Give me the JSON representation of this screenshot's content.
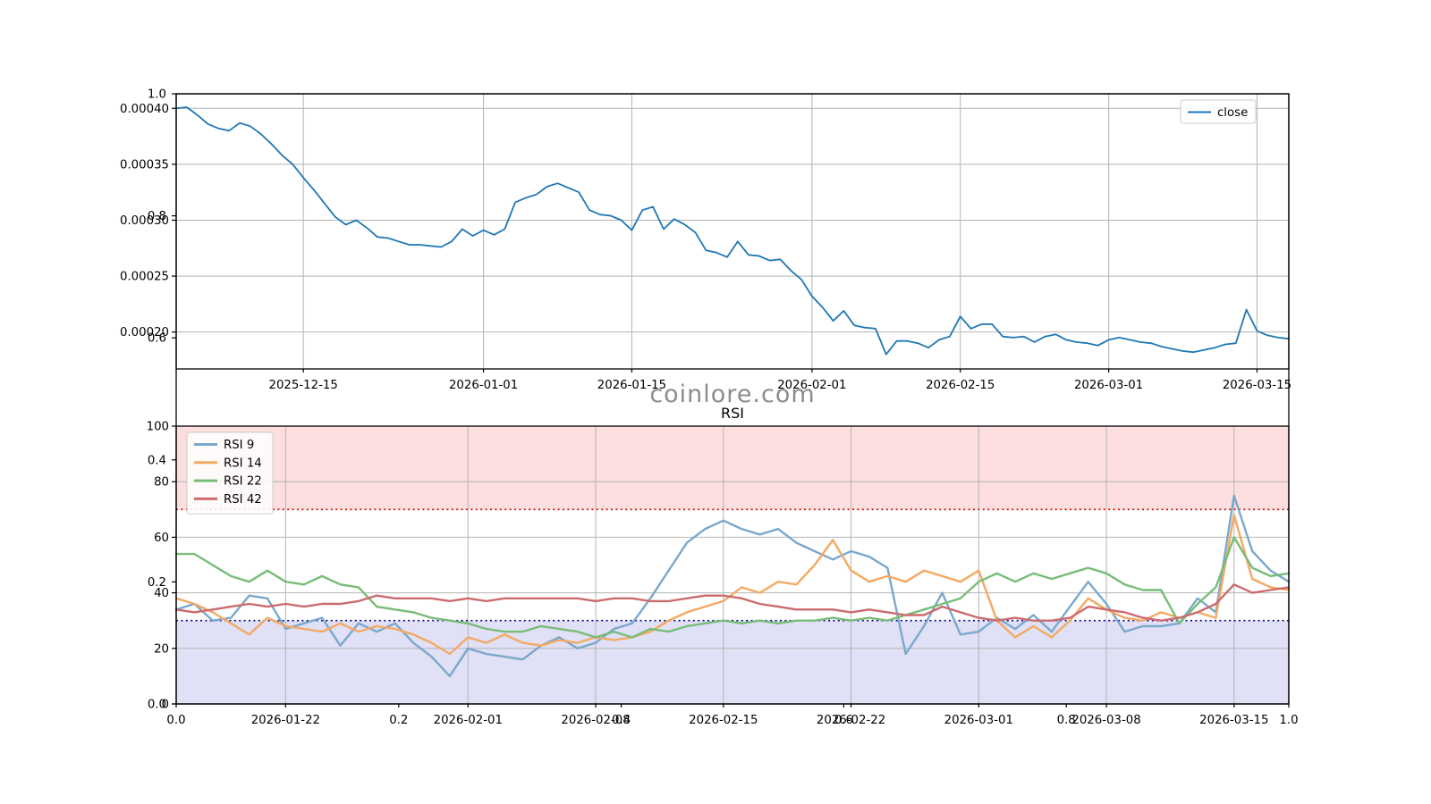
{
  "watermark": "coinlore.com",
  "figure_overlay_axis": {
    "y_labels": [
      "1.0",
      "0.8",
      "0.6",
      "0.4",
      "0.2",
      "0.0"
    ],
    "x_labels": [
      "0.0",
      "0.2",
      "0.4",
      "0.6",
      "0.8",
      "1.0"
    ]
  },
  "chart_data": [
    {
      "type": "line",
      "name": "price",
      "title": "",
      "xlabel": "",
      "ylabel": "",
      "x_start_date": "2025-12-03",
      "x_frequency": "daily",
      "x_tick_labels": [
        "2025-12-15",
        "2026-01-01",
        "2026-01-15",
        "2026-02-01",
        "2026-02-15",
        "2026-03-01",
        "2026-03-15"
      ],
      "x_tick_days": [
        12,
        29,
        43,
        60,
        74,
        88,
        102
      ],
      "y_tick_labels": [
        "0.00020",
        "0.00025",
        "0.00030",
        "0.00035",
        "0.00040"
      ],
      "y_tick_values": [
        0.0002,
        0.00025,
        0.0003,
        0.00035,
        0.0004
      ],
      "ylim": [
        0.000167,
        0.000413
      ],
      "grid": true,
      "legend_position": "top-right",
      "series": [
        {
          "name": "close",
          "color": "#1f77b4",
          "width": 1.8,
          "values": [
            0.0004,
            0.000401,
            0.000394,
            0.000386,
            0.000382,
            0.00038,
            0.000387,
            0.000384,
            0.000377,
            0.000368,
            0.000358,
            0.00035,
            0.000338,
            0.000327,
            0.000315,
            0.000303,
            0.000296,
            0.0003,
            0.000293,
            0.000285,
            0.000284,
            0.000281,
            0.000278,
            0.000278,
            0.000277,
            0.000276,
            0.000281,
            0.000292,
            0.000286,
            0.000291,
            0.000287,
            0.000292,
            0.000316,
            0.00032,
            0.000323,
            0.00033,
            0.000333,
            0.000329,
            0.000325,
            0.000309,
            0.000305,
            0.000304,
            0.0003,
            0.000291,
            0.000309,
            0.000312,
            0.000292,
            0.000301,
            0.000296,
            0.000289,
            0.000273,
            0.000271,
            0.000267,
            0.000281,
            0.000269,
            0.000268,
            0.000264,
            0.000265,
            0.000255,
            0.000247,
            0.000232,
            0.000222,
            0.00021,
            0.000219,
            0.000206,
            0.000204,
            0.000203,
            0.00018,
            0.000192,
            0.000192,
            0.00019,
            0.000186,
            0.000193,
            0.000196,
            0.000214,
            0.000203,
            0.000207,
            0.000207,
            0.000196,
            0.000195,
            0.000196,
            0.000191,
            0.000196,
            0.000198,
            0.000193,
            0.000191,
            0.00019,
            0.000188,
            0.000193,
            0.000195,
            0.000193,
            0.000191,
            0.00019,
            0.000187,
            0.000185,
            0.000183,
            0.000182,
            0.000184,
            0.000186,
            0.000189,
            0.00019,
            0.00022,
            0.000201,
            0.000197,
            0.000195,
            0.000194
          ]
        }
      ]
    },
    {
      "type": "line",
      "name": "rsi",
      "title": "RSI",
      "xlabel": "",
      "ylabel": "",
      "x_start_date": "2026-01-16",
      "x_frequency": "daily",
      "x_tick_labels": [
        "2026-01-22",
        "2026-02-01",
        "2026-02-08",
        "2026-02-15",
        "2026-02-22",
        "2026-03-01",
        "2026-03-08",
        "2026-03-15"
      ],
      "x_tick_days": [
        6,
        16,
        23,
        30,
        37,
        44,
        51,
        58
      ],
      "y_tick_labels": [
        "0",
        "20",
        "40",
        "60",
        "80",
        "100"
      ],
      "y_tick_values": [
        0,
        20,
        40,
        60,
        80,
        100
      ],
      "ylim": [
        0,
        100
      ],
      "grid": true,
      "legend_position": "top-left",
      "bands": [
        {
          "name": "overbought-band",
          "from": 70,
          "to": 100,
          "color": "#fcdede"
        },
        {
          "name": "oversold-band",
          "from": 0,
          "to": 30,
          "color": "#e0e0f6"
        }
      ],
      "ref_lines": [
        {
          "name": "overbought-line",
          "value": 70,
          "color": "#cc0000"
        },
        {
          "name": "oversold-line",
          "value": 30,
          "color": "#00008b"
        }
      ],
      "series": [
        {
          "name": "RSI 9",
          "color": "#7aa8cc",
          "width": 2.4,
          "values": [
            34,
            36,
            30,
            31,
            39,
            38,
            27,
            29,
            31,
            21,
            29,
            26,
            29,
            22,
            17,
            10,
            20,
            18,
            17,
            16,
            21,
            24,
            20,
            22,
            27,
            29,
            38,
            48,
            58,
            63,
            66,
            63,
            61,
            63,
            58,
            55,
            52,
            55,
            53,
            49,
            18,
            28,
            40,
            25,
            26,
            31,
            27,
            32,
            26,
            35,
            44,
            36,
            26,
            28,
            28,
            29,
            38,
            33,
            75,
            55,
            48,
            44
          ]
        },
        {
          "name": "RSI 14",
          "color": "#f4a962",
          "width": 2.4,
          "values": [
            38,
            36,
            33,
            29,
            25,
            31,
            28,
            27,
            26,
            29,
            26,
            28,
            27,
            25,
            22,
            18,
            24,
            22,
            25,
            22,
            21,
            23,
            22,
            24,
            23,
            24,
            26,
            30,
            33,
            35,
            37,
            42,
            40,
            44,
            43,
            50,
            59,
            48,
            44,
            46,
            44,
            48,
            46,
            44,
            48,
            30,
            24,
            28,
            24,
            30,
            38,
            34,
            31,
            30,
            33,
            31,
            33,
            31,
            68,
            45,
            42,
            41
          ]
        },
        {
          "name": "RSI 22",
          "color": "#77bd77",
          "width": 2.4,
          "values": [
            54,
            54,
            50,
            46,
            44,
            48,
            44,
            43,
            46,
            43,
            42,
            35,
            34,
            33,
            31,
            30,
            29,
            27,
            26,
            26,
            28,
            27,
            26,
            24,
            26,
            24,
            27,
            26,
            28,
            29,
            30,
            29,
            30,
            29,
            30,
            30,
            31,
            30,
            31,
            30,
            32,
            34,
            36,
            38,
            44,
            47,
            44,
            47,
            45,
            47,
            49,
            47,
            43,
            41,
            41,
            29,
            36,
            42,
            60,
            49,
            46,
            47
          ]
        },
        {
          "name": "RSI 42",
          "color": "#cc6b6e",
          "width": 2.4,
          "values": [
            34,
            33,
            34,
            35,
            36,
            35,
            36,
            35,
            36,
            36,
            37,
            39,
            38,
            38,
            38,
            37,
            38,
            37,
            38,
            38,
            38,
            38,
            38,
            37,
            38,
            38,
            37,
            37,
            38,
            39,
            39,
            38,
            36,
            35,
            34,
            34,
            34,
            33,
            34,
            33,
            32,
            32,
            35,
            33,
            31,
            30,
            31,
            30,
            30,
            31,
            35,
            34,
            33,
            31,
            30,
            31,
            33,
            36,
            43,
            40,
            41,
            42
          ]
        }
      ]
    }
  ]
}
